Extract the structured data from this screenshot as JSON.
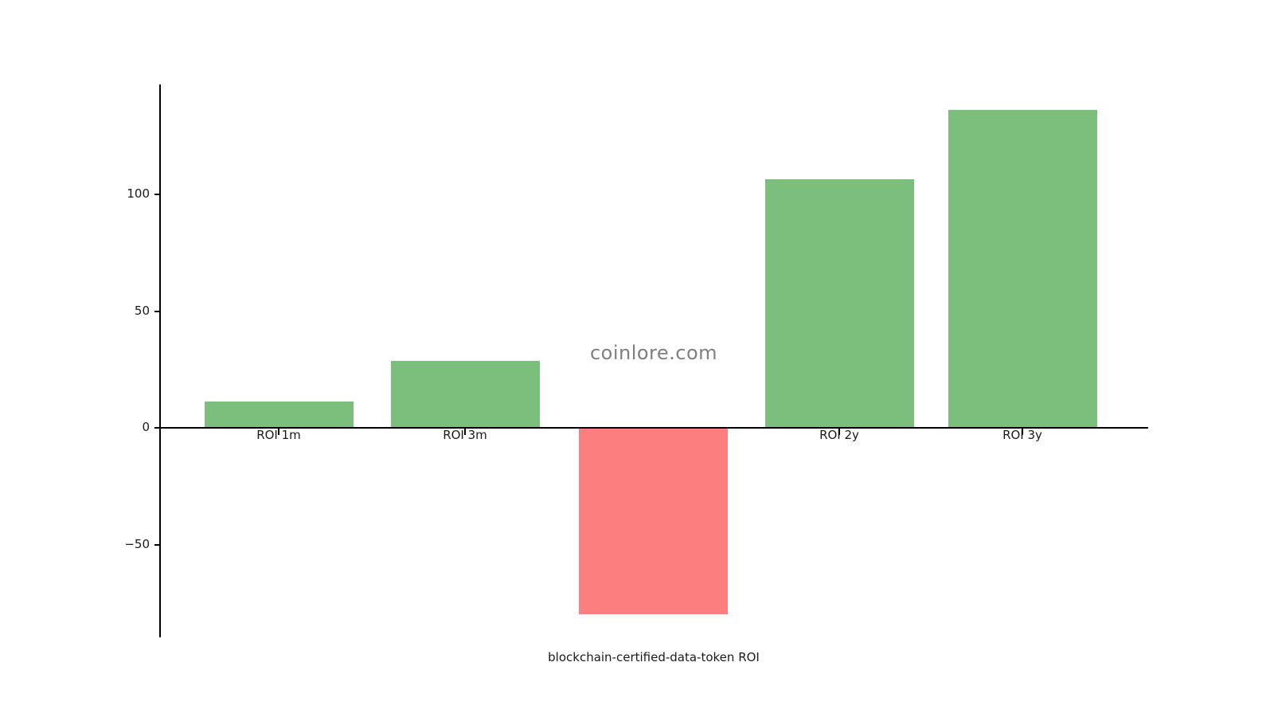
{
  "watermark": "coinlore.com",
  "chart_data": {
    "type": "bar",
    "title": "blockchain-certified-data-token ROI",
    "categories": [
      "ROI 1m",
      "ROI 3m",
      "",
      "ROI 2y",
      "ROI 3y"
    ],
    "values": [
      11.2,
      28.6,
      -79.8,
      106.5,
      136.1
    ],
    "bar_colors": [
      "#7cbe7c",
      "#7cbe7c",
      "#fc7e7e",
      "#7cbe7c",
      "#7cbe7c"
    ],
    "hidden_label_note": "middle category label is covered by the negative bar",
    "yticks": [
      100,
      50,
      0,
      -50
    ],
    "ytick_labels": [
      "100",
      "50",
      "0",
      "−50"
    ],
    "ylim": [
      -90,
      147
    ],
    "xlabel": "",
    "ylabel": "",
    "grid": false,
    "legend": null,
    "colors": {
      "positive": "#7cbe7c",
      "negative": "#fc7e7e",
      "axis": "#000000",
      "watermark": "#7f7f7f"
    }
  }
}
